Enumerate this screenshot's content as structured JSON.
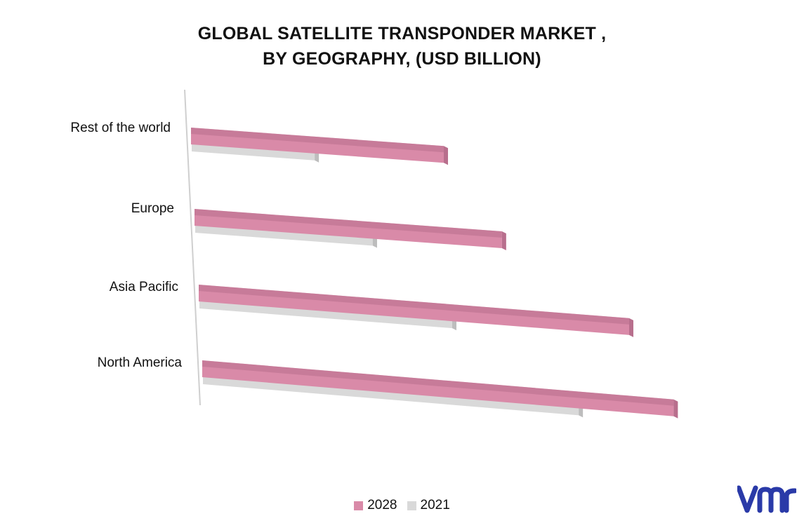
{
  "title_line1": "GLOBAL SATELLITE TRANSPONDER MARKET ,",
  "title_line2": "BY GEOGRAPHY, (USD BILLION)",
  "colors": {
    "series_2028": "#d98aa8",
    "series_2028_top": "#b86f8d",
    "series_2021": "#d9d9d9",
    "series_2021_top": "#bdbdbd",
    "logo": "#2a3aa8"
  },
  "logo_icon": "vmr-logo",
  "chart_data": {
    "type": "bar",
    "orientation": "horizontal",
    "categories": [
      "Rest of the world",
      "Europe",
      "Asia Pacific",
      "North America"
    ],
    "series": [
      {
        "name": "2028",
        "values": [
          3.7,
          4.5,
          6.3,
          6.9
        ]
      },
      {
        "name": "2021",
        "values": [
          1.8,
          2.6,
          3.7,
          5.5
        ]
      }
    ],
    "xlim": [
      0,
      7
    ],
    "legend_position": "bottom",
    "grid": false,
    "style": "3d"
  }
}
